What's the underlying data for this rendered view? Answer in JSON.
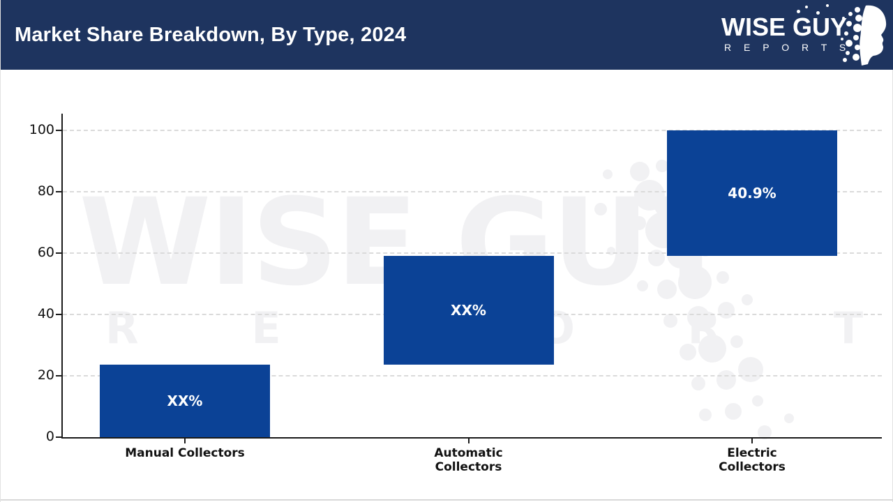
{
  "header": {
    "title": "Market Share Breakdown, By Type, 2024",
    "bg_color": "#1e345f",
    "logo": {
      "name": "WISE GUY",
      "subname": "R E P O R T S"
    }
  },
  "watermark": {
    "line1": "WISE GUY",
    "line2": "R E P O R T S"
  },
  "chart_data": {
    "type": "bar",
    "variant": "stacked-breakdown-waterfall",
    "title": "Market Share Breakdown, By Type, 2024",
    "categories": [
      "Manual Collectors",
      "Automatic Collectors",
      "Electric Collectors"
    ],
    "bars": [
      {
        "category": "Manual Collectors",
        "category_lines": [
          "Manual Collectors"
        ],
        "value_label": "XX%",
        "start": 0,
        "end": 23.6
      },
      {
        "category": "Automatic Collectors",
        "category_lines": [
          "Automatic",
          "Collectors"
        ],
        "value_label": "XX%",
        "start": 23.6,
        "end": 59.1
      },
      {
        "category": "Electric Collectors",
        "category_lines": [
          "Electric",
          "Collectors"
        ],
        "value_label": "40.9%",
        "start": 59.1,
        "end": 100
      }
    ],
    "ylim": [
      0,
      100
    ],
    "yticks": [
      0,
      20,
      40,
      60,
      80,
      100
    ],
    "grid": {
      "horizontal": true,
      "style": "dashed",
      "color": "#dadada"
    },
    "bar_color": "#0b4296",
    "value_label_color": "#ffffff",
    "axis_color": "#1a1a1a",
    "legend": null
  },
  "colors": {
    "header_bg": "#1e345f",
    "bar": "#0b4296",
    "grid": "#dadada",
    "watermark": "#f1f1f3"
  }
}
